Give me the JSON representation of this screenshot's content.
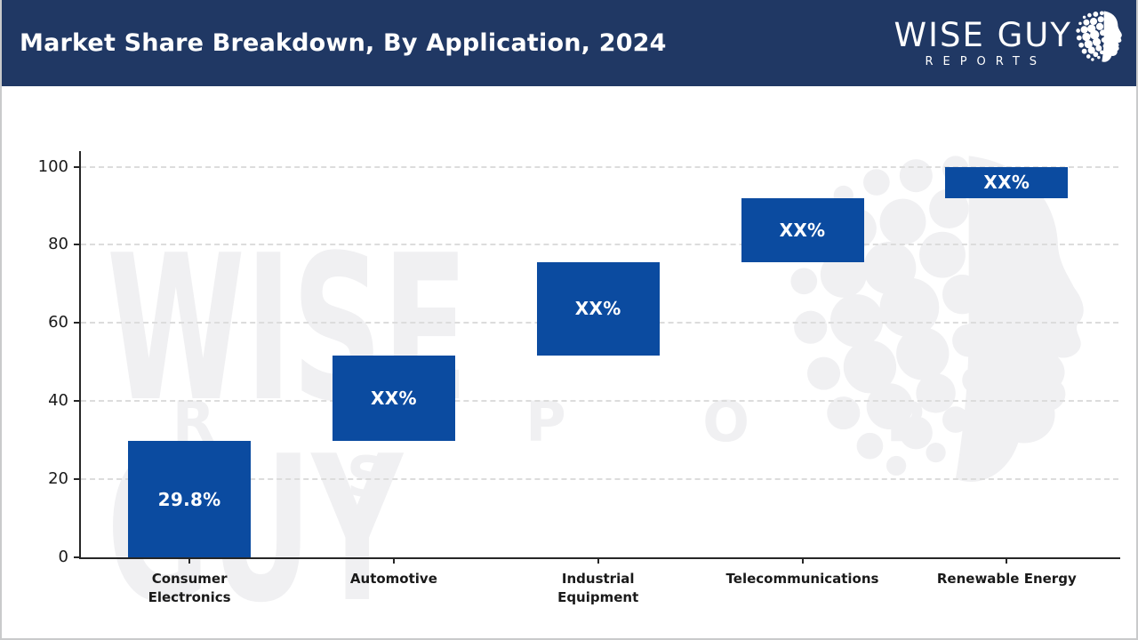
{
  "header": {
    "title": "Market Share Breakdown, By Application, 2024",
    "logo": {
      "line1": "WISE GUY",
      "line2": "REPORTS"
    }
  },
  "watermark": {
    "line1": "WISE GUY",
    "line2": "R E P O R T S"
  },
  "colors": {
    "header_bg": "#203864",
    "bar": "#0B4BA0",
    "bar_label": "#FFFFFF",
    "grid": "#DCDCDC",
    "axis": "#262626",
    "text": "#1A1A1A",
    "watermark": "#F0F0F2",
    "border": "#C9CACB",
    "background": "#FFFFFF"
  },
  "chart_data": {
    "type": "bar",
    "subtype": "waterfall",
    "title": "Market Share Breakdown, By Application, 2024",
    "categories": [
      "Consumer\nElectronics",
      "Automotive",
      "Industrial\nEquipment",
      "Telecommunications",
      "Renewable Energy"
    ],
    "segments": [
      {
        "category": "Consumer Electronics",
        "start": 0,
        "end": 29.8,
        "label": "29.8%"
      },
      {
        "category": "Automotive",
        "start": 29.8,
        "end": 51.7,
        "label": "XX%"
      },
      {
        "category": "Industrial Equipment",
        "start": 51.7,
        "end": 75.6,
        "label": "XX%"
      },
      {
        "category": "Telecommunications",
        "start": 75.6,
        "end": 91.9,
        "label": "XX%"
      },
      {
        "category": "Renewable Energy",
        "start": 91.9,
        "end": 100,
        "label": "XX%"
      }
    ],
    "ylabel": "",
    "xlabel": "",
    "ylim": [
      0,
      100
    ],
    "yticks": [
      0,
      20,
      40,
      60,
      80,
      100
    ],
    "grid": "horizontal-dashed",
    "legend": "none"
  }
}
